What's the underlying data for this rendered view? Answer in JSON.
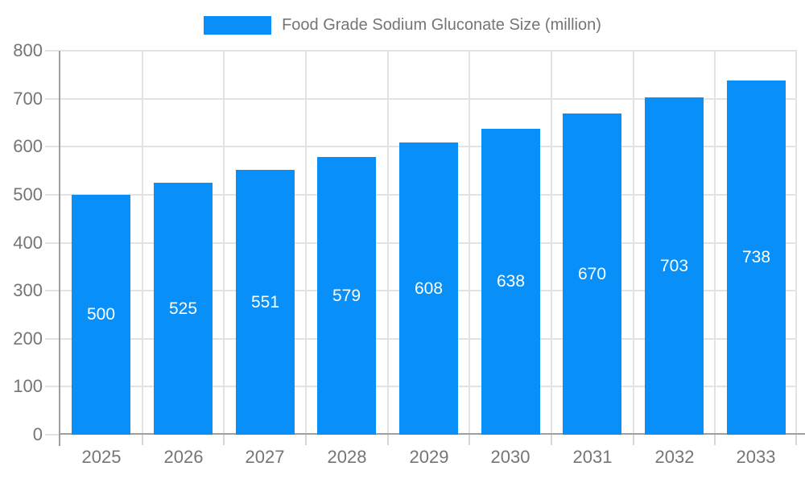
{
  "chart_data": {
    "type": "bar",
    "title": "Food Grade Sodium Gluconate Size (million)",
    "categories": [
      "2025",
      "2026",
      "2027",
      "2028",
      "2029",
      "2030",
      "2031",
      "2032",
      "2033"
    ],
    "values": [
      500,
      525,
      551,
      579,
      608,
      638,
      670,
      703,
      738
    ],
    "xlabel": "",
    "ylabel": "",
    "ylim": [
      0,
      800
    ],
    "ytick_step": 100,
    "grid": true,
    "legend_position": "top",
    "value_labels": "inside-center",
    "colors": {
      "bar": "#0890f8",
      "grid": "#e3e3e3",
      "axis": "#9e9e9e",
      "tick": "#d6d6d6",
      "axis_text": "#757575",
      "value_text": "#ffffff",
      "background": "#ffffff"
    }
  }
}
